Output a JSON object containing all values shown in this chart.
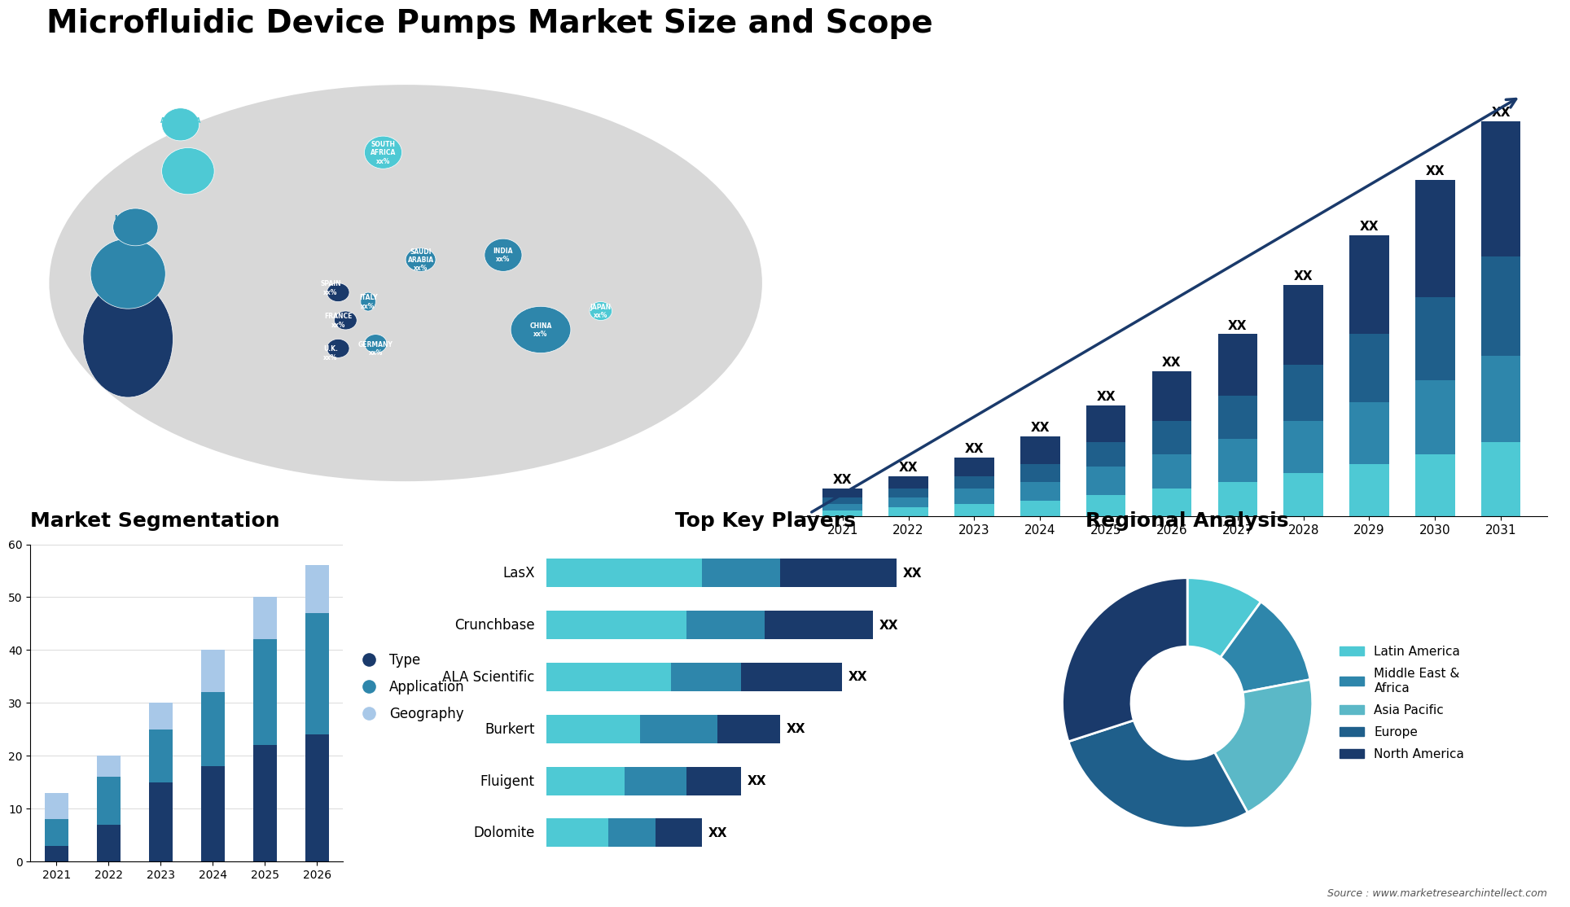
{
  "title": "Microfluidic Device Pumps Market Size and Scope",
  "bg_color": "#ffffff",
  "title_color": "#000000",
  "title_fontsize": 28,
  "bar_chart_years": [
    "2021",
    "2022",
    "2023",
    "2024",
    "2025",
    "2026",
    "2027",
    "2028",
    "2029",
    "2030",
    "2031"
  ],
  "bar_chart_data": {
    "layer1": [
      1.5,
      2.0,
      3.0,
      4.5,
      6.0,
      8.0,
      10.0,
      13.0,
      16.0,
      19.0,
      22.0
    ],
    "layer2": [
      1.0,
      1.5,
      2.0,
      3.0,
      4.0,
      5.5,
      7.0,
      9.0,
      11.0,
      13.5,
      16.0
    ],
    "layer3": [
      1.0,
      1.5,
      2.5,
      3.0,
      4.5,
      5.5,
      7.0,
      8.5,
      10.0,
      12.0,
      14.0
    ],
    "layer4": [
      1.0,
      1.5,
      2.0,
      2.5,
      3.5,
      4.5,
      5.5,
      7.0,
      8.5,
      10.0,
      12.0
    ]
  },
  "bar_colors": [
    "#1a3a6b",
    "#1f5f8b",
    "#2e86ab",
    "#4ec9d4"
  ],
  "bar_label": "XX",
  "seg_years": [
    "2021",
    "2022",
    "2023",
    "2024",
    "2025",
    "2026"
  ],
  "seg_type": [
    3,
    7,
    15,
    18,
    22,
    24
  ],
  "seg_application": [
    5,
    9,
    10,
    14,
    20,
    23
  ],
  "seg_geography": [
    5,
    4,
    5,
    8,
    8,
    9
  ],
  "seg_colors": [
    "#1a3a6b",
    "#2e86ab",
    "#a8c8e8"
  ],
  "seg_title": "Market Segmentation",
  "seg_ylim": [
    0,
    60
  ],
  "seg_yticks": [
    0,
    10,
    20,
    30,
    40,
    50,
    60
  ],
  "seg_legend": [
    "Type",
    "Application",
    "Geography"
  ],
  "players": [
    "LasX",
    "Crunchbase",
    "ALA Scientific",
    "Burkert",
    "Fluigent",
    "Dolomite"
  ],
  "players_bar1": [
    45,
    42,
    38,
    30,
    25,
    20
  ],
  "players_bar2": [
    30,
    28,
    25,
    22,
    18,
    14
  ],
  "players_bar3": [
    20,
    18,
    16,
    12,
    10,
    8
  ],
  "players_colors": [
    "#1a3a6b",
    "#2e86ab",
    "#4ec9d4"
  ],
  "players_title": "Top Key Players",
  "players_label": "XX",
  "pie_data": [
    10,
    12,
    20,
    28,
    30
  ],
  "pie_colors": [
    "#4ec9d4",
    "#2e86ab",
    "#5bb8c7",
    "#1f5f8b",
    "#1a3a6b"
  ],
  "pie_labels": [
    "Latin America",
    "Middle East &\nAfrica",
    "Asia Pacific",
    "Europe",
    "North America"
  ],
  "pie_title": "Regional Analysis",
  "source_text": "Source : www.marketresearchintellect.com"
}
